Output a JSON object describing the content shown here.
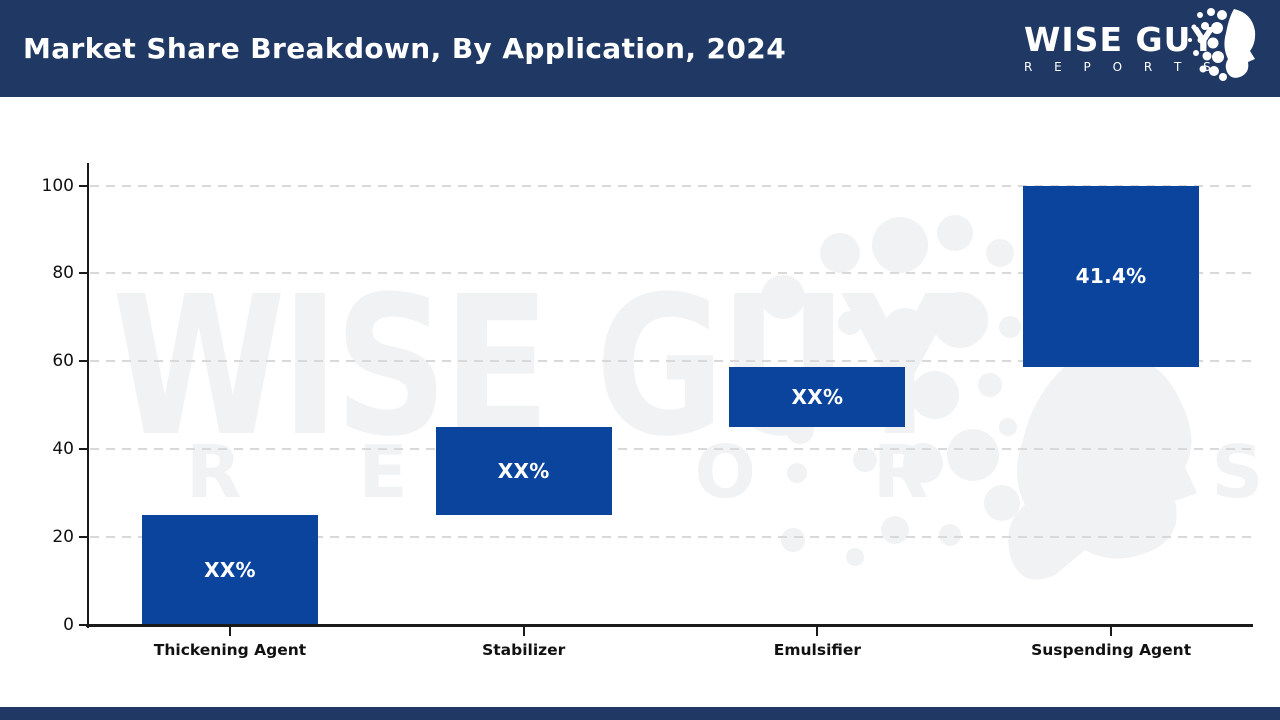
{
  "header": {
    "title": "Market Share Breakdown, By Application, 2024",
    "logo": {
      "line1": "WISE GUY",
      "line2": "R E P O R T S"
    }
  },
  "watermark": {
    "line1": "WISE GUY",
    "line2": "R E P O R T S"
  },
  "footer": {},
  "colors": {
    "header_bg": "#1f3864",
    "footer_bg": "#1f3864",
    "bar": "#0a449c",
    "bar_label": "#ffffff",
    "gridline": "#d9d9d9",
    "axis": "#1a1a1a",
    "watermark": "#f1f2f3"
  },
  "chart_data": {
    "type": "bar",
    "subtype": "waterfall-floating-bars",
    "title": "Market Share Breakdown, By Application, 2024",
    "categories": [
      "Thickening Agent",
      "Stabilizer",
      "Emulsifier",
      "Suspending Agent"
    ],
    "segments": [
      {
        "category": "Thickening Agent",
        "from": 0,
        "to": 25,
        "value": 25,
        "value_label": "XX%"
      },
      {
        "category": "Stabilizer",
        "from": 25,
        "to": 45,
        "value": 20,
        "value_label": "XX%"
      },
      {
        "category": "Emulsifier",
        "from": 45,
        "to": 58.6,
        "value": 13.6,
        "value_label": "XX%"
      },
      {
        "category": "Suspending Agent",
        "from": 58.6,
        "to": 100,
        "value": 41.4,
        "value_label": "41.4%"
      }
    ],
    "xlabel": "",
    "ylabel": "",
    "ylim": [
      0,
      105
    ],
    "yticks": [
      0,
      20,
      40,
      60,
      80,
      100
    ],
    "grid": "horizontal-dashed",
    "legend": "none"
  }
}
